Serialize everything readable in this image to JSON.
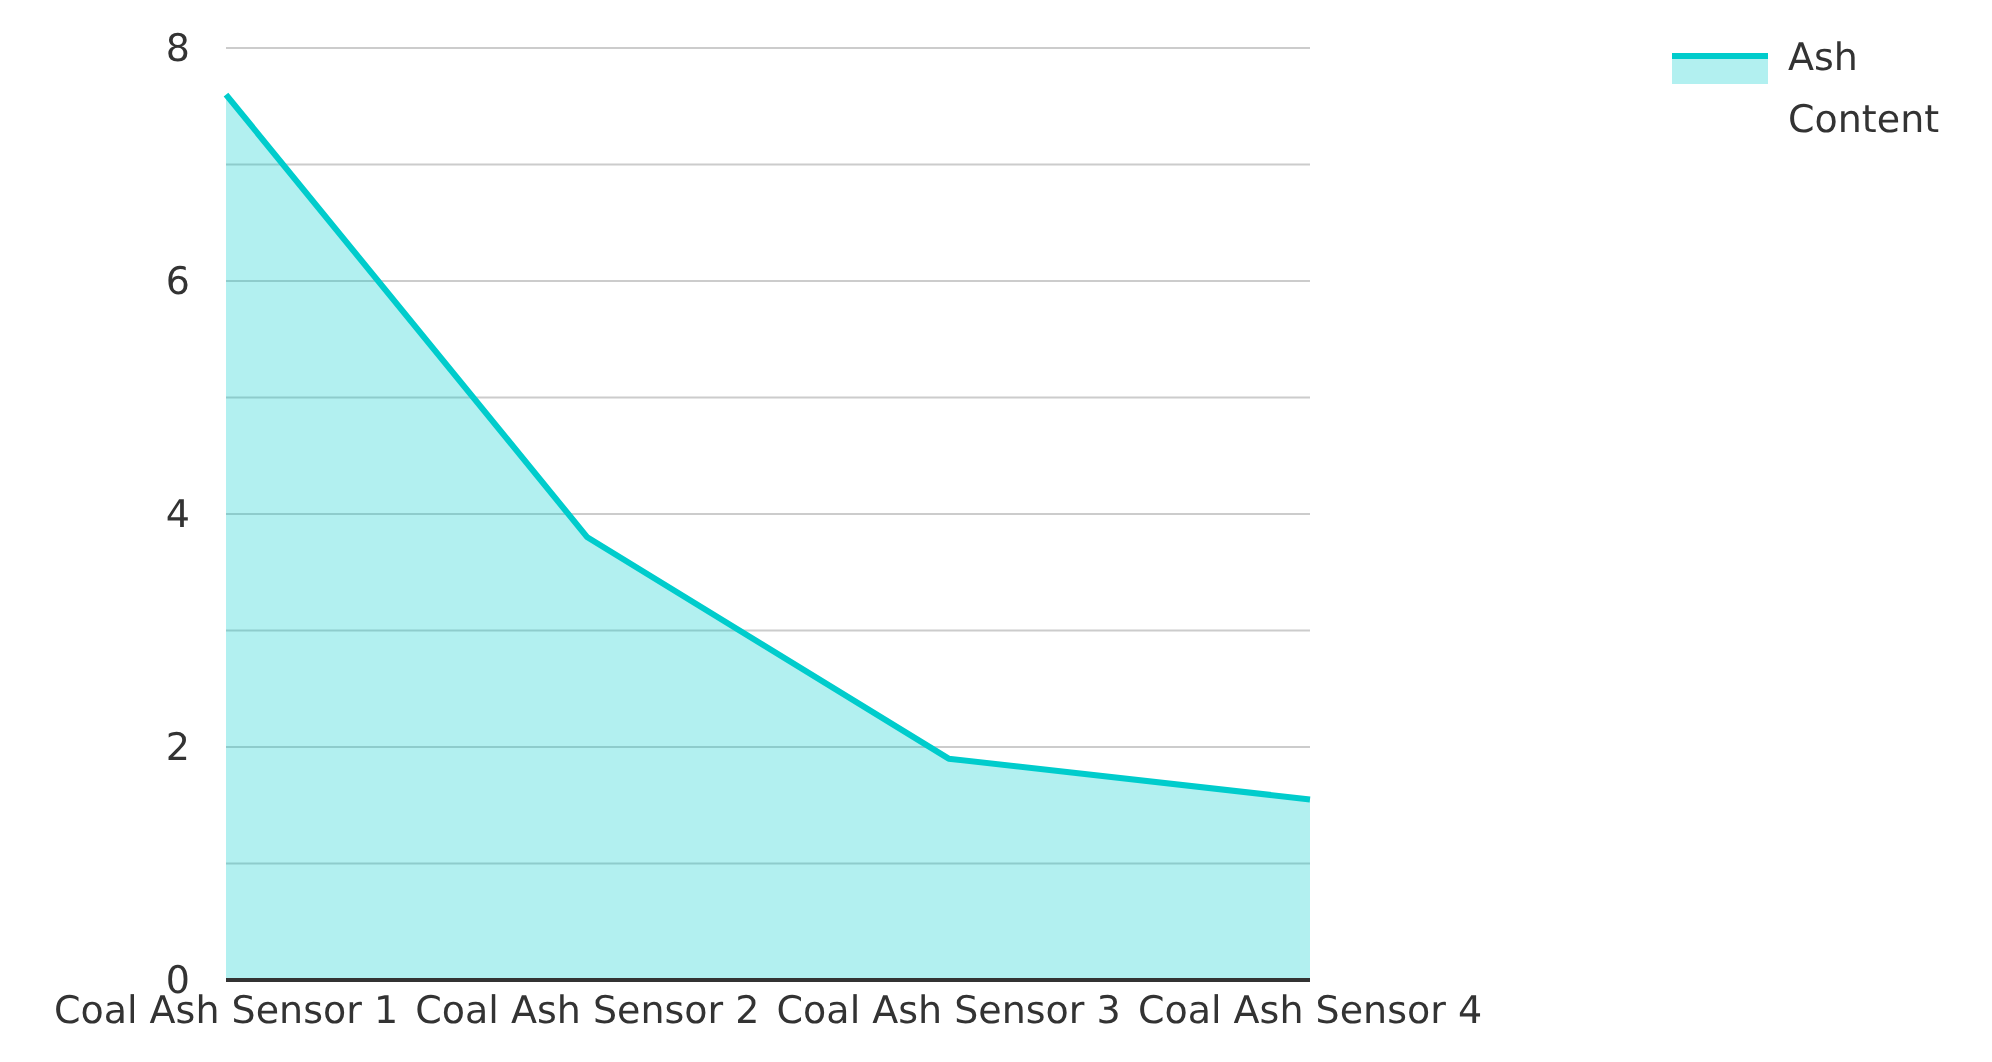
{
  "chart_data": {
    "type": "area",
    "categories": [
      "Coal Ash Sensor 1",
      "Coal Ash Sensor 2",
      "Coal Ash Sensor 3",
      "Coal Ash Sensor 4"
    ],
    "series": [
      {
        "name": "Ash Content",
        "color": "#00cccc",
        "values": [
          7.6,
          3.8,
          1.9,
          1.55
        ]
      }
    ],
    "ylim": [
      0,
      8
    ],
    "yticks": [
      0,
      {
        "value": 1,
        "label": null
      },
      2,
      {
        "value": 3,
        "label": null
      },
      4,
      {
        "value": 5,
        "label": null
      },
      6,
      {
        "value": 7,
        "label": null
      },
      8
    ],
    "grid": "y",
    "legend": "top right"
  }
}
